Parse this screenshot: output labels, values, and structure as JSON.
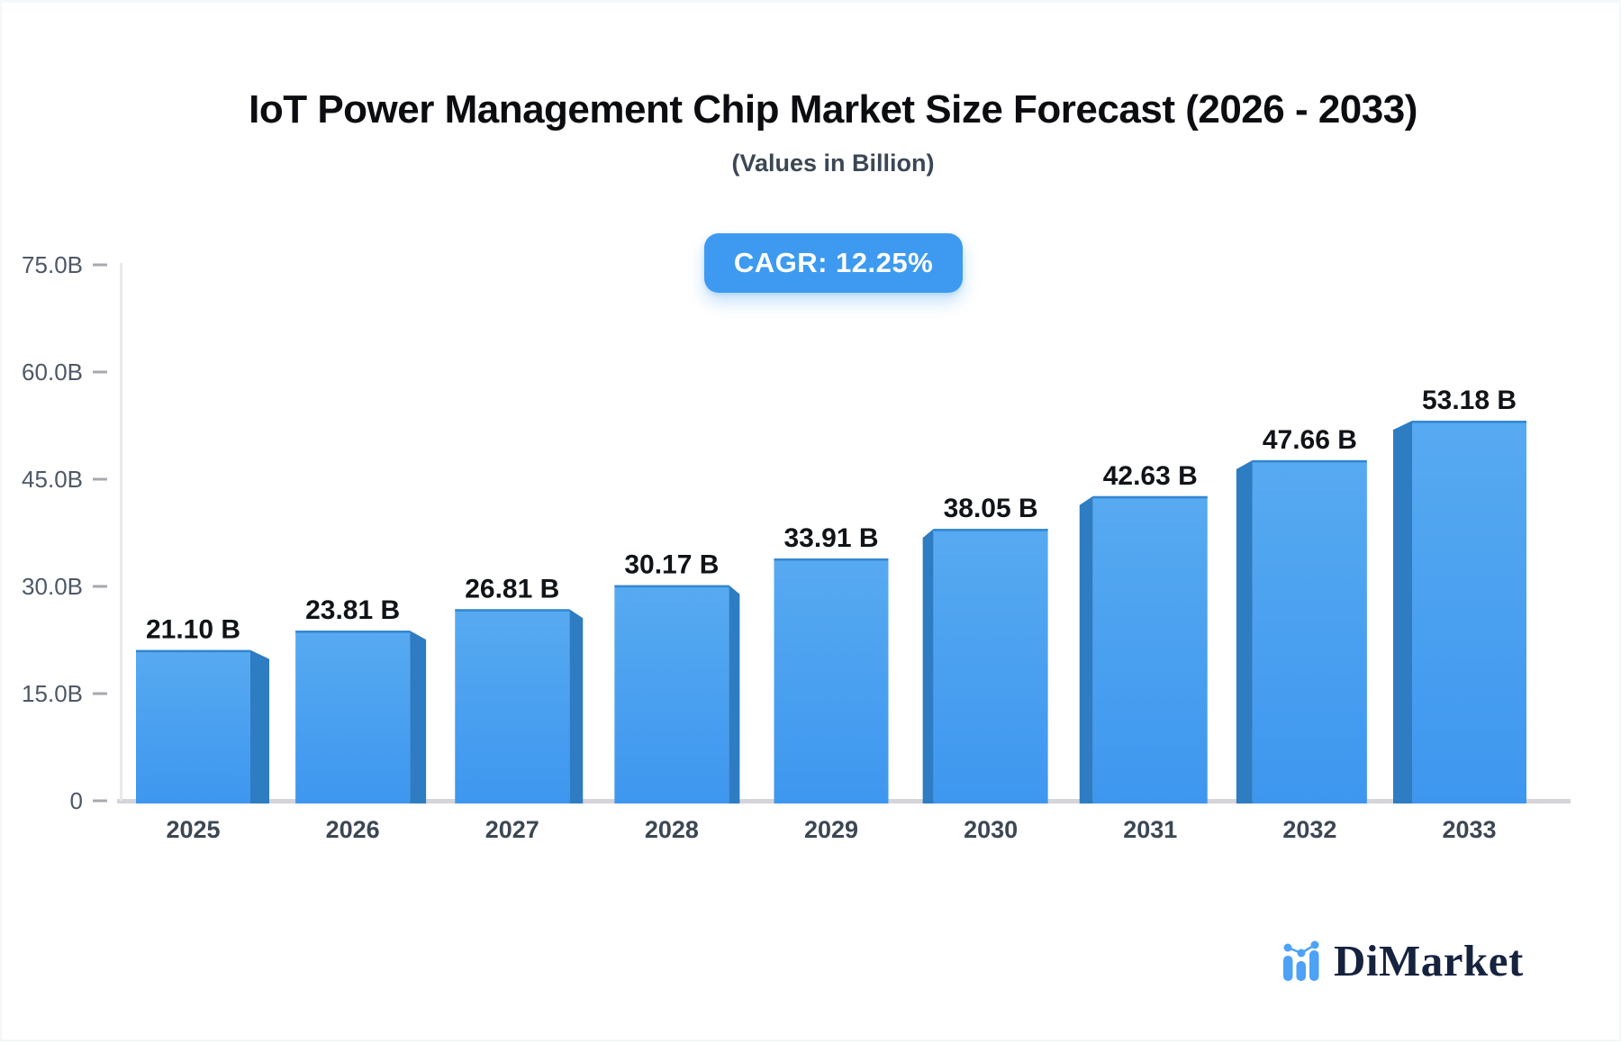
{
  "chart_data": {
    "type": "bar",
    "title": "IoT Power Management Chip Market Size Forecast (2026 - 2033)",
    "subtitle": "(Values in Billion)",
    "cagr_label": "CAGR: 12.25%",
    "cagr_percent": 12.25,
    "categories": [
      "2025",
      "2026",
      "2027",
      "2028",
      "2029",
      "2030",
      "2031",
      "2032",
      "2033"
    ],
    "values": [
      21.1,
      23.81,
      26.81,
      30.17,
      33.91,
      38.05,
      42.63,
      47.66,
      53.18
    ],
    "value_labels": [
      "21.10 B",
      "23.81 B",
      "26.81 B",
      "30.17 B",
      "33.91 B",
      "38.05 B",
      "42.63 B",
      "47.66 B",
      "53.18 B"
    ],
    "xlabel": "",
    "ylabel": "",
    "ylim": [
      0,
      75
    ],
    "yticks": [
      {
        "value": 0,
        "label": "0"
      },
      {
        "value": 15,
        "label": "15.0B"
      },
      {
        "value": 30,
        "label": "30.0B"
      },
      {
        "value": 45,
        "label": "45.0B"
      },
      {
        "value": 60,
        "label": "60.0B"
      },
      {
        "value": 75,
        "label": "75.0B"
      }
    ],
    "grid": false,
    "legend": false,
    "bar_style": "3d-perspective-center"
  },
  "logo": {
    "name": "DiMarket"
  },
  "colors": {
    "title_text": "#0B0D10",
    "subtitle_text": "#3B4754",
    "badge_bg": "#3E9AF0",
    "badge_text": "#FFFFFF",
    "bar_front_top": "#57AAF1",
    "bar_front_bottom": "#3E97EF",
    "bar_side": "#2E7CC2",
    "bar_top_edge": "#3182CB",
    "axis_line": "#E9E9EE",
    "baseline": "#D4D4DA",
    "tick": "#A8A8AE",
    "ytick_text": "#4E5866",
    "xtick_text": "#3C4754",
    "value_text": "#101418",
    "logo_text": "#16233F",
    "logo_icon": "#4EA2F6"
  }
}
